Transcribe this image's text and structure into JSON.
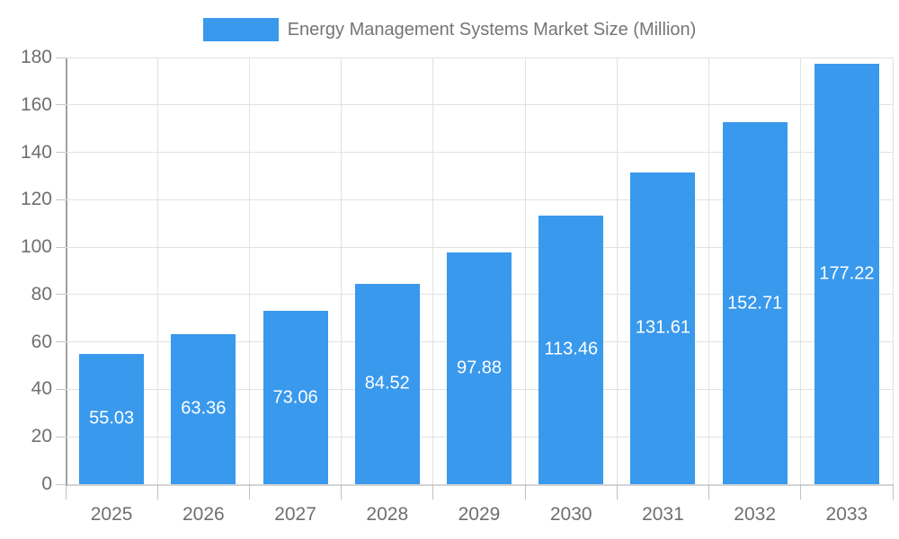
{
  "legend": {
    "label": "Energy Management Systems Market Size (Million)"
  },
  "chart_data": {
    "type": "bar",
    "title": "Energy Management Systems Market Size (Million)",
    "categories": [
      "2025",
      "2026",
      "2027",
      "2028",
      "2029",
      "2030",
      "2031",
      "2032",
      "2033"
    ],
    "values": [
      55.03,
      63.36,
      73.06,
      84.52,
      97.88,
      113.46,
      131.61,
      152.71,
      177.22
    ],
    "value_labels": [
      "55.03",
      "63.36",
      "73.06",
      "84.52",
      "97.88",
      "113.46",
      "131.61",
      "152.71",
      "177.22"
    ],
    "xlabel": "",
    "ylabel": "",
    "ylim": [
      0,
      180
    ],
    "ytick_step": 20,
    "ytick_labels": [
      "0",
      "20",
      "40",
      "60",
      "80",
      "100",
      "120",
      "140",
      "160",
      "180"
    ],
    "grid": true,
    "legend_position": "top",
    "bar_color": "#3999ec",
    "value_label_color": "#ffffff",
    "axis_text_color": "#6f6f6f",
    "gridline_color": "#e2e2e2"
  }
}
